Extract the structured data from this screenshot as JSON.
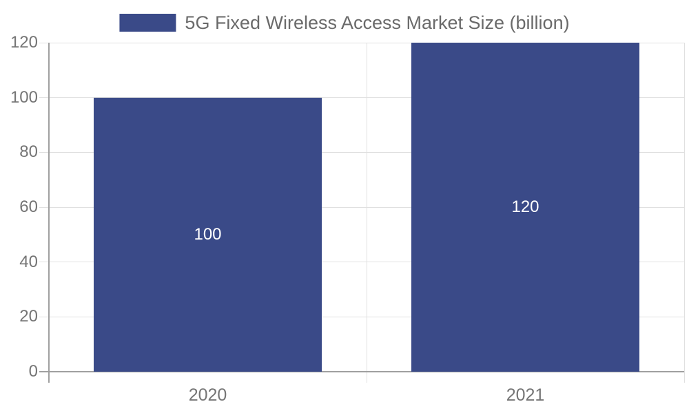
{
  "legend": {
    "label": "5G Fixed Wireless Access Market Size (billion)"
  },
  "chart_data": {
    "type": "bar",
    "title": "",
    "xlabel": "",
    "ylabel": "",
    "categories": [
      "2020",
      "2021"
    ],
    "values": [
      100,
      120
    ],
    "data_labels": [
      "100",
      "120"
    ],
    "legend_entries": [
      "5G Fixed Wireless Access Market Size (billion)"
    ],
    "legend_position": "top-center",
    "ylim": [
      0,
      120
    ],
    "yticks": [
      0,
      20,
      40,
      60,
      80,
      100,
      120
    ],
    "grid": true,
    "bar_width_fraction": 0.72,
    "colors": {
      "bar": "#3A4A88",
      "bar_label_text": "#FFFFFF",
      "tick_text": "#757575",
      "legend_text": "#6A6A6A",
      "gridline": "#E0E0E0",
      "axis_line": "#A0A0A0",
      "background": "#FFFFFF"
    }
  }
}
